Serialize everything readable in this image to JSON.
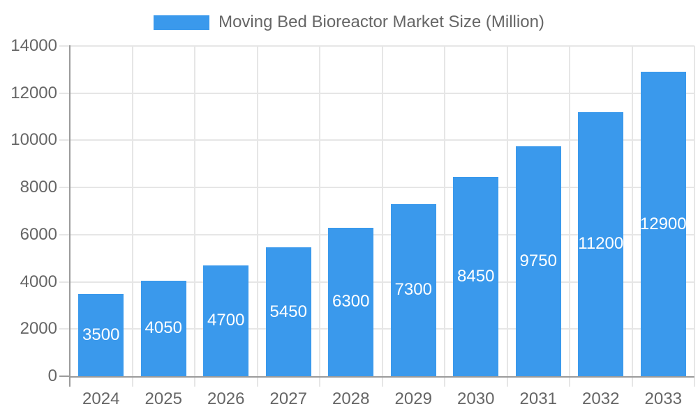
{
  "chart_data": {
    "type": "bar",
    "title": "Moving Bed Bioreactor Market Size (Million)",
    "legend": {
      "position": "top",
      "label": "Moving Bed Bioreactor Market Size (Million)"
    },
    "categories": [
      "2024",
      "2025",
      "2026",
      "2027",
      "2028",
      "2029",
      "2030",
      "2031",
      "2032",
      "2033"
    ],
    "series": [
      {
        "name": "Moving Bed Bioreactor Market Size (Million)",
        "values": [
          3500,
          4050,
          4700,
          5450,
          6300,
          7300,
          8450,
          9750,
          11200,
          12900
        ]
      }
    ],
    "value_labels": {
      "position": "inside-center",
      "color": "#ffffff"
    },
    "xlabel": "",
    "ylabel": "",
    "ylim": [
      0,
      14000
    ],
    "y_ticks": [
      0,
      2000,
      4000,
      6000,
      8000,
      10000,
      12000,
      14000
    ],
    "grid": true,
    "colors": {
      "bar": "#3A99EC",
      "axis_line": "#9B9B9B",
      "grid_line": "#E6E6E6",
      "tick_text": "#666666",
      "background": "#FFFFFF"
    }
  }
}
